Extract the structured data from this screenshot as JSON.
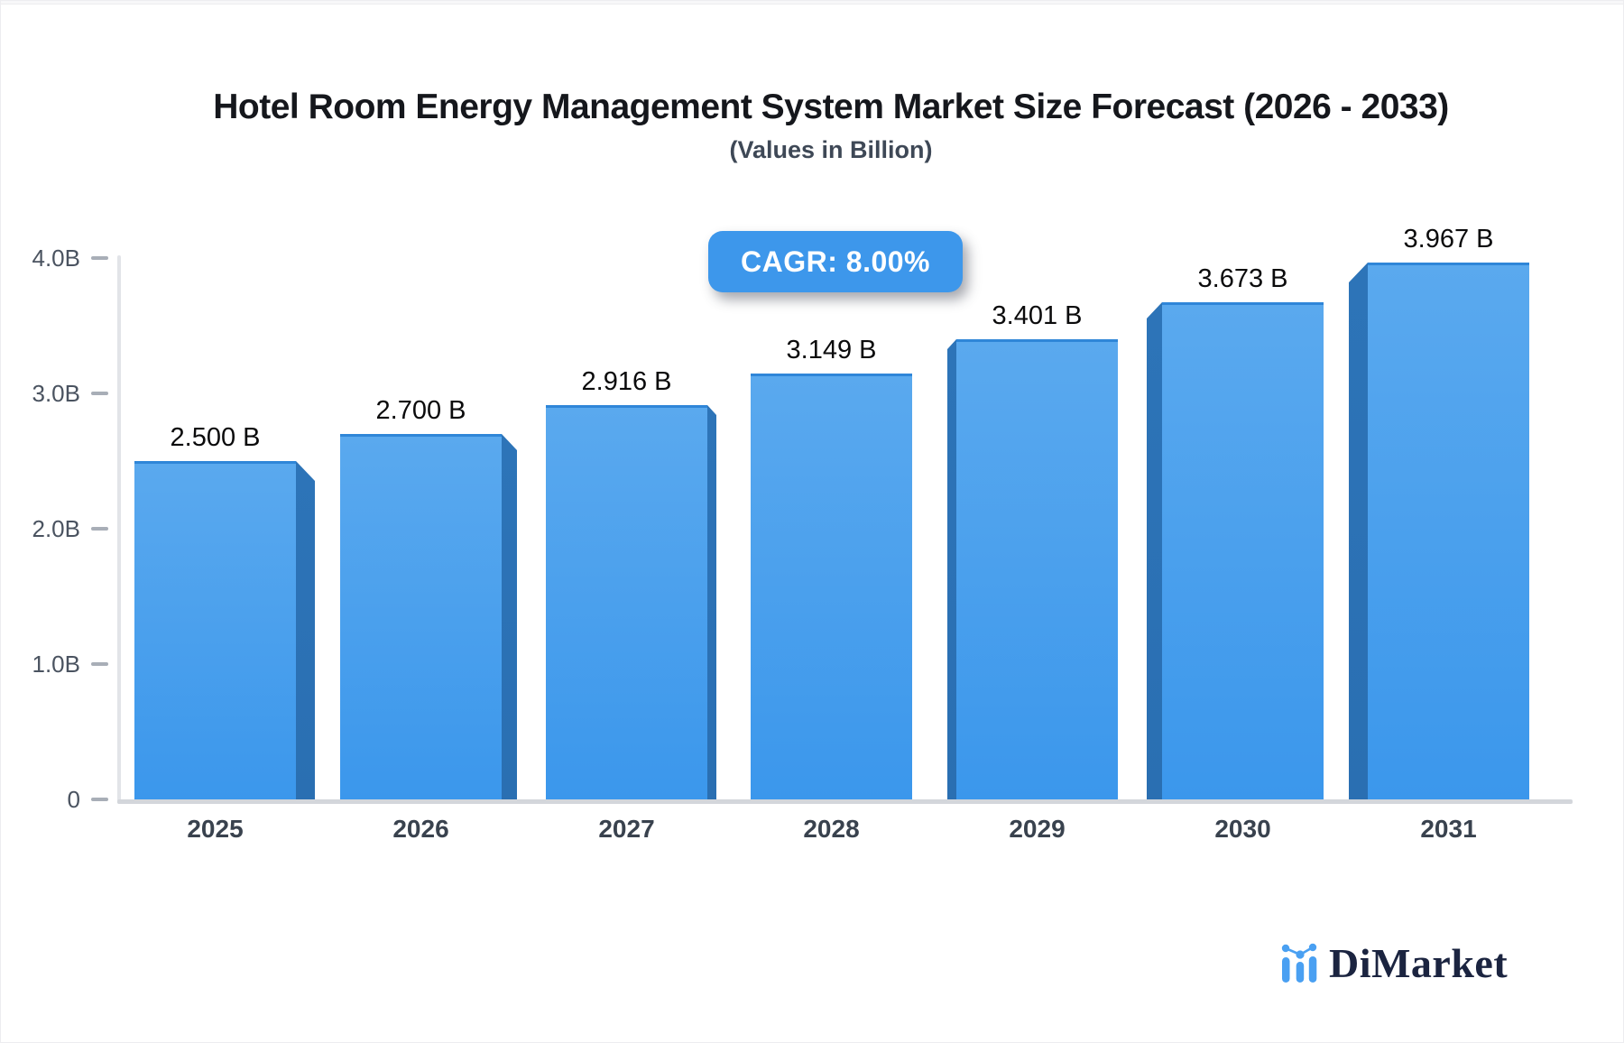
{
  "header": {
    "title": "Hotel Room Energy Management System Market Size Forecast (2026 - 2033)",
    "subtitle": "(Values in Billion)"
  },
  "cagr_badge": {
    "label": "CAGR: 8.00%"
  },
  "chart_data": {
    "type": "bar",
    "title": "Hotel Room Energy Management System Market Size Forecast (2026 - 2033)",
    "subtitle": "(Values in Billion)",
    "categories": [
      "2025",
      "2026",
      "2027",
      "2028",
      "2029",
      "2030",
      "2031"
    ],
    "values": [
      2.5,
      2.7,
      2.916,
      3.149,
      3.401,
      3.673,
      3.967
    ],
    "value_labels": [
      "2.500 B",
      "2.700 B",
      "2.916 B",
      "3.149 B",
      "3.401 B",
      "3.673 B",
      "3.967 B"
    ],
    "xlabel": "",
    "ylabel": "",
    "ylim": [
      0,
      4.0
    ],
    "y_ticks": [
      {
        "label": "4.0B",
        "value": 4.0
      },
      {
        "label": "3.0B",
        "value": 3.0
      },
      {
        "label": "2.0B",
        "value": 2.0
      },
      {
        "label": "1.0B",
        "value": 1.0
      },
      {
        "label": "0",
        "value": 0.0
      }
    ],
    "grid": false,
    "legend": false,
    "cagr_percent": 8.0,
    "colors": {
      "bar_face_top": "#5aa9ee",
      "bar_face_bottom": "#3b97ec",
      "bar_face_edge": "#2f86d8",
      "bar_side": "#2d74b8",
      "badge_bg": "#3d97eb",
      "axis_line_x": "#d3d6db",
      "axis_line_y": "#e2e4e8",
      "tick_dash": "#a8aeb7"
    }
  },
  "footer": {
    "brand": "DiMarket"
  }
}
